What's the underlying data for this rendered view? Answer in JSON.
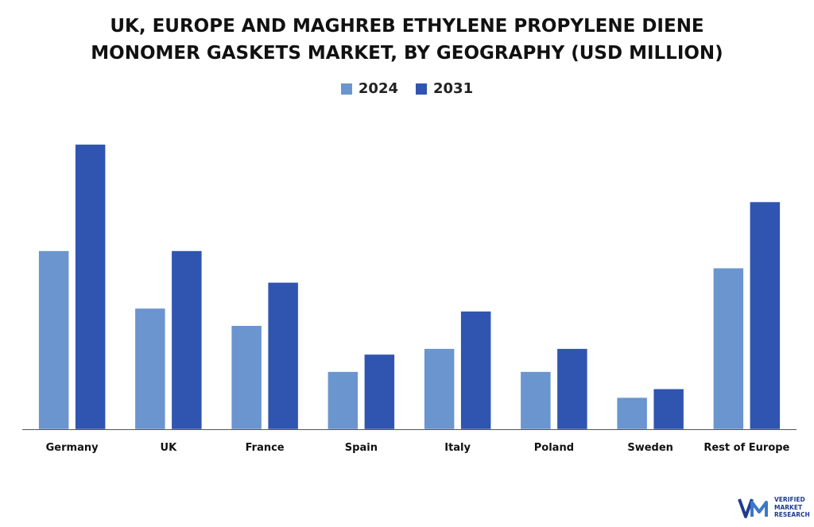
{
  "title_line1": "UK, EUROPE AND MAGHREB ETHYLENE PROPYLENE DIENE",
  "title_line2": "MONOMER GASKETS MARKET, BY GEOGRAPHY (USD MILLION)",
  "colors": {
    "s2024": "#6a95cf",
    "s2031": "#2f55b0",
    "axis": "#555555"
  },
  "chart_data": {
    "type": "bar",
    "title": "UK, EUROPE AND MAGHREB ETHYLENE PROPYLENE DIENE MONOMER GASKETS MARKET, BY GEOGRAPHY (USD MILLION)",
    "categories": [
      "Germany",
      "UK",
      "France",
      "Spain",
      "Italy",
      "Poland",
      "Sweden",
      "Rest of Europe"
    ],
    "series": [
      {
        "name": "2024",
        "values": [
          62,
          42,
          36,
          20,
          28,
          20,
          11,
          56
        ]
      },
      {
        "name": "2031",
        "values": [
          99,
          62,
          51,
          26,
          41,
          28,
          14,
          79
        ]
      }
    ],
    "ylim": [
      0,
      100
    ],
    "grid": false,
    "legend": "top-center"
  },
  "logo": {
    "line1": "VERIFIED",
    "line2": "MARKET",
    "line3": "RESEARCH"
  }
}
